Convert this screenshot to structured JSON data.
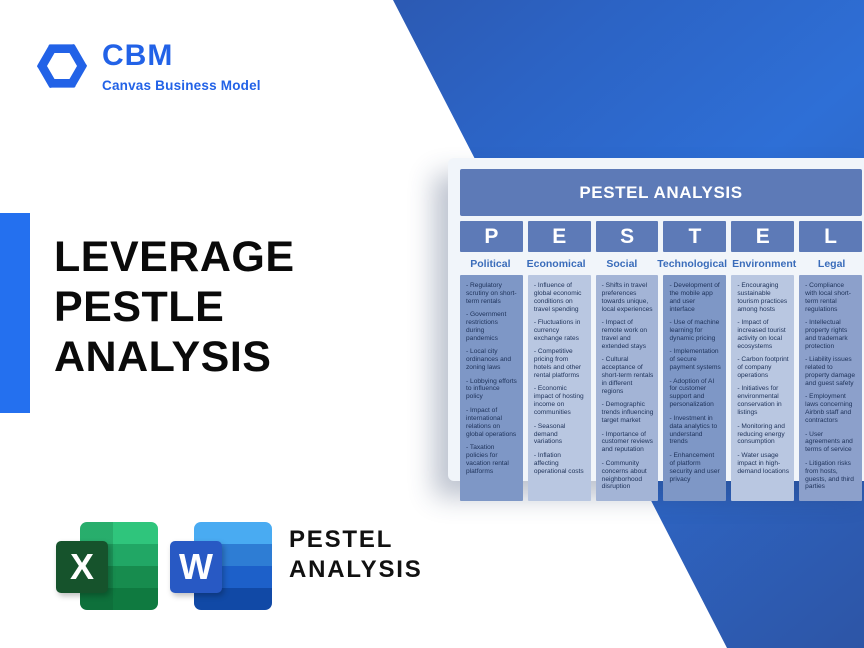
{
  "brand": {
    "abbr": "CBM",
    "tagline": "Canvas Business Model"
  },
  "title": {
    "line1": "LEVERAGE",
    "line2": "PESTLE",
    "line3": "ANALYSIS"
  },
  "table": {
    "title": "PESTEL ANALYSIS",
    "columns": [
      {
        "letter": "P",
        "name": "Political",
        "bullets": [
          "- Regulatory scrutiny on short-term rentals",
          "- Government restrictions during pandemics",
          "- Local city ordinances and zoning laws",
          "- Lobbying efforts to influence policy",
          "- Impact of international relations on global operations",
          "- Taxation policies for vacation rental platforms"
        ]
      },
      {
        "letter": "E",
        "name": "Economical",
        "bullets": [
          "- Influence of global economic conditions on travel spending",
          "- Fluctuations in currency exchange rates",
          "- Competitive pricing from hotels and other rental platforms",
          "- Economic impact of hosting income on communities",
          "- Seasonal demand variations",
          "- Inflation affecting operational costs"
        ]
      },
      {
        "letter": "S",
        "name": "Social",
        "bullets": [
          "- Shifts in travel preferences towards unique, local experiences",
          "- Impact of remote work on travel and extended stays",
          "- Cultural acceptance of short-term rentals in different regions",
          "- Demographic trends influencing target market",
          "- Importance of customer reviews and reputation",
          "- Community concerns about neighborhood disruption"
        ]
      },
      {
        "letter": "T",
        "name": "Technological",
        "bullets": [
          "- Development of the mobile app and user interface",
          "- Use of machine learning for dynamic pricing",
          "- Implementation of secure payment systems",
          "- Adoption of AI for customer support and personalization",
          "- Investment in data analytics to understand trends",
          "- Enhancement of platform security and user privacy"
        ]
      },
      {
        "letter": "E",
        "name": "Environment",
        "bullets": [
          "- Encouraging sustainable tourism practices among hosts",
          "- Impact of increased tourist activity on local ecosystems",
          "- Carbon footprint of company operations",
          "- Initiatives for environmental conservation in listings",
          "- Monitoring and reducing energy consumption",
          "- Water usage impact in high-demand locations"
        ]
      },
      {
        "letter": "L",
        "name": "Legal",
        "bullets": [
          "- Compliance with local short-term rental regulations",
          "- Intellectual property rights and trademark protection",
          "- Liability issues related to property damage and guest safety",
          "- Employment laws concerning Airbnb staff and contractors",
          "- User agreements and terms of service",
          "- Litigation risks from hosts, guests, and third parties"
        ]
      }
    ]
  },
  "footer": {
    "excel_letter": "X",
    "word_letter": "W",
    "label_line1": "PESTEL",
    "label_line2": "ANALYSIS"
  },
  "colors": {
    "brand_blue": "#2262e7",
    "left_bar": "#2470ef",
    "band_dark": "#2b4f9f",
    "band_light": "#2e6fd6",
    "band_corner": "#2d55a6",
    "card_background": "#f1f5fa",
    "table_header_bg": "#5d7ab7",
    "column_name_text": "#3a6cba",
    "body_text": "#1d3158",
    "column_backgrounds": [
      "#7e97c6",
      "#b9c7e1",
      "#a3b4d6",
      "#7e97c6",
      "#b9c7e1",
      "#8ca0cb"
    ],
    "excel_square": "#16532c",
    "word_square": "#2859c4"
  }
}
